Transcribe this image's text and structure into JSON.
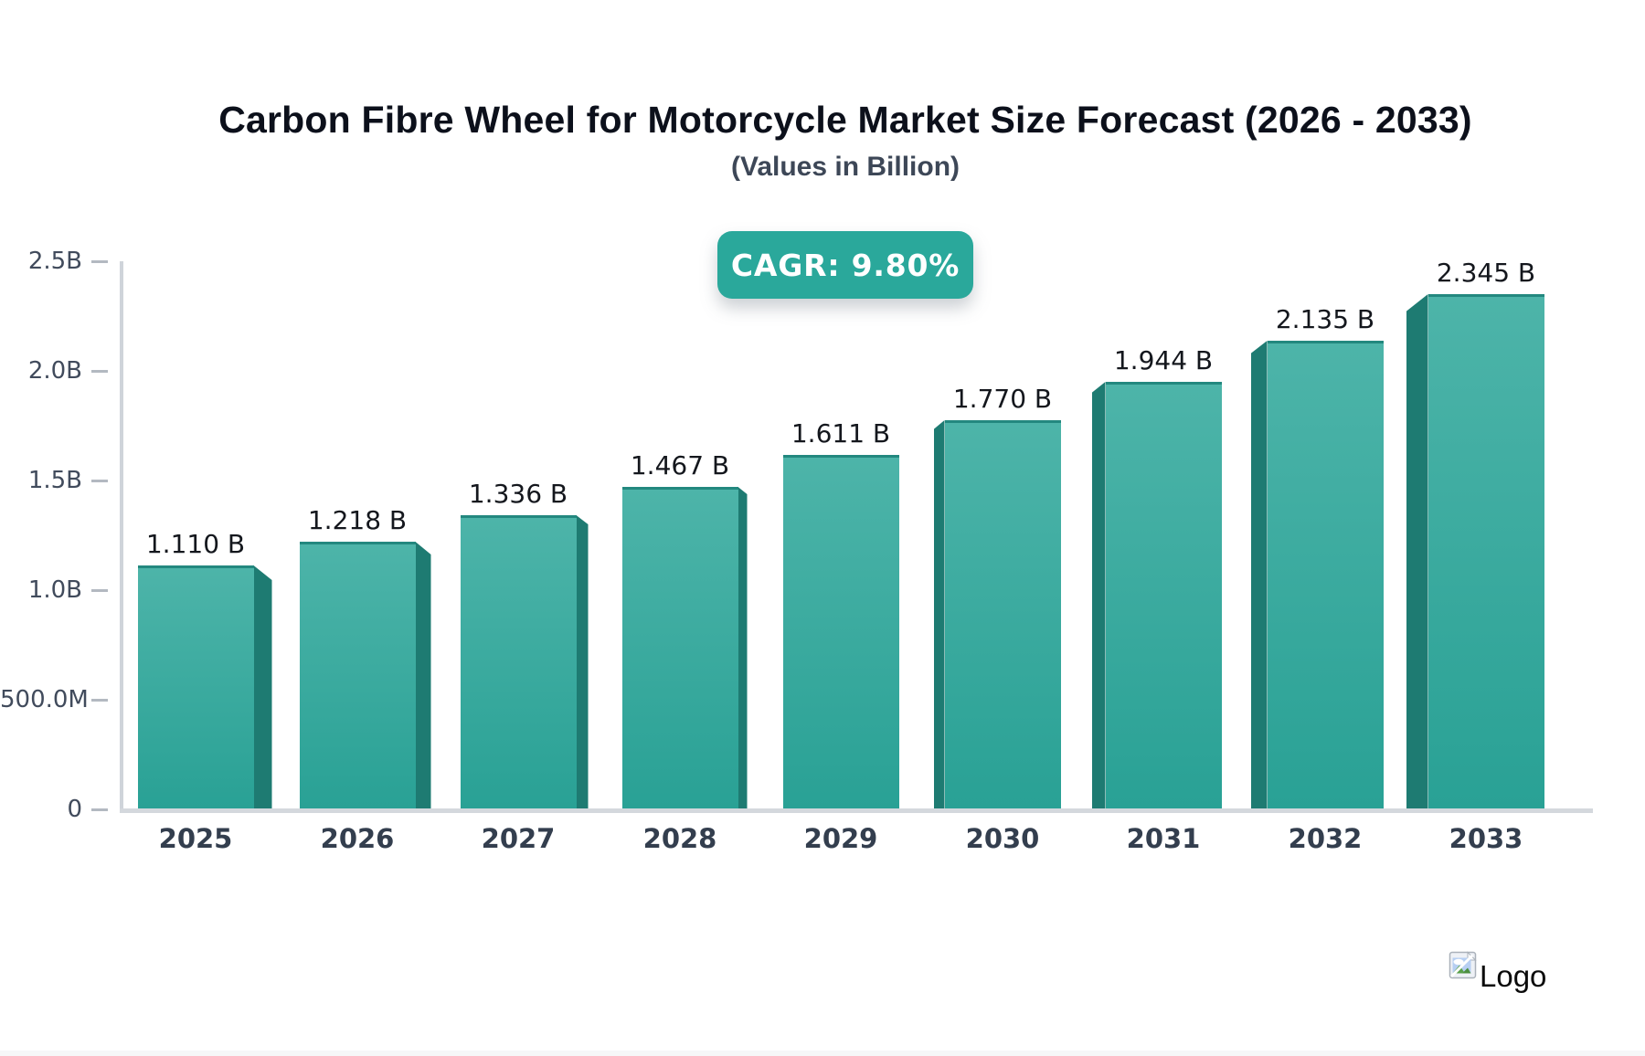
{
  "header": {
    "title": "Carbon Fibre Wheel for Motorcycle Market Size Forecast (2026 - 2033)",
    "subtitle": "(Values in Billion)",
    "cagr_label": "CAGR: 9.80%"
  },
  "chart_data": {
    "type": "bar",
    "title": "Carbon Fibre Wheel for Motorcycle Market Size Forecast (2026 - 2033)",
    "subtitle": "(Values in Billion)",
    "categories": [
      "2025",
      "2026",
      "2027",
      "2028",
      "2029",
      "2030",
      "2031",
      "2032",
      "2033"
    ],
    "values": [
      1.11,
      1.218,
      1.336,
      1.467,
      1.611,
      1.77,
      1.944,
      2.135,
      2.345
    ],
    "value_labels": [
      "1.110 B",
      "1.218 B",
      "1.336 B",
      "1.467 B",
      "1.611 B",
      "1.770 B",
      "1.944 B",
      "2.135 B",
      "2.345 B"
    ],
    "unit": "Billion",
    "cagr": "9.80%",
    "xlabel": "",
    "ylabel": "",
    "ylim": [
      0,
      2.5
    ],
    "grid": false,
    "legend": false,
    "yticks": [
      {
        "label": "2.5B",
        "value": 2.5
      },
      {
        "label": "2.0B",
        "value": 2.0
      },
      {
        "label": "1.5B",
        "value": 1.5
      },
      {
        "label": "1.0B",
        "value": 1.0
      },
      {
        "label": "500.0M",
        "value": 0.5
      },
      {
        "label": "0",
        "value": 0
      }
    ]
  },
  "colors": {
    "bar_face_top": "#4db4a9",
    "bar_face_bottom": "#29a195",
    "bar_top_edge": "#23887f",
    "bar_side": "#1e7b72",
    "badge_bg": "#2aa89b",
    "badge_text": "#ffffff",
    "axis_line": "#cfd4da",
    "title_text": "#0c101b",
    "subtitle_text": "#3d4757",
    "value_label_text": "#14171d",
    "xtick_text": "#333e4e",
    "ytick_text": "#414b5c"
  },
  "footer": {
    "logo_alt": "Logo"
  }
}
